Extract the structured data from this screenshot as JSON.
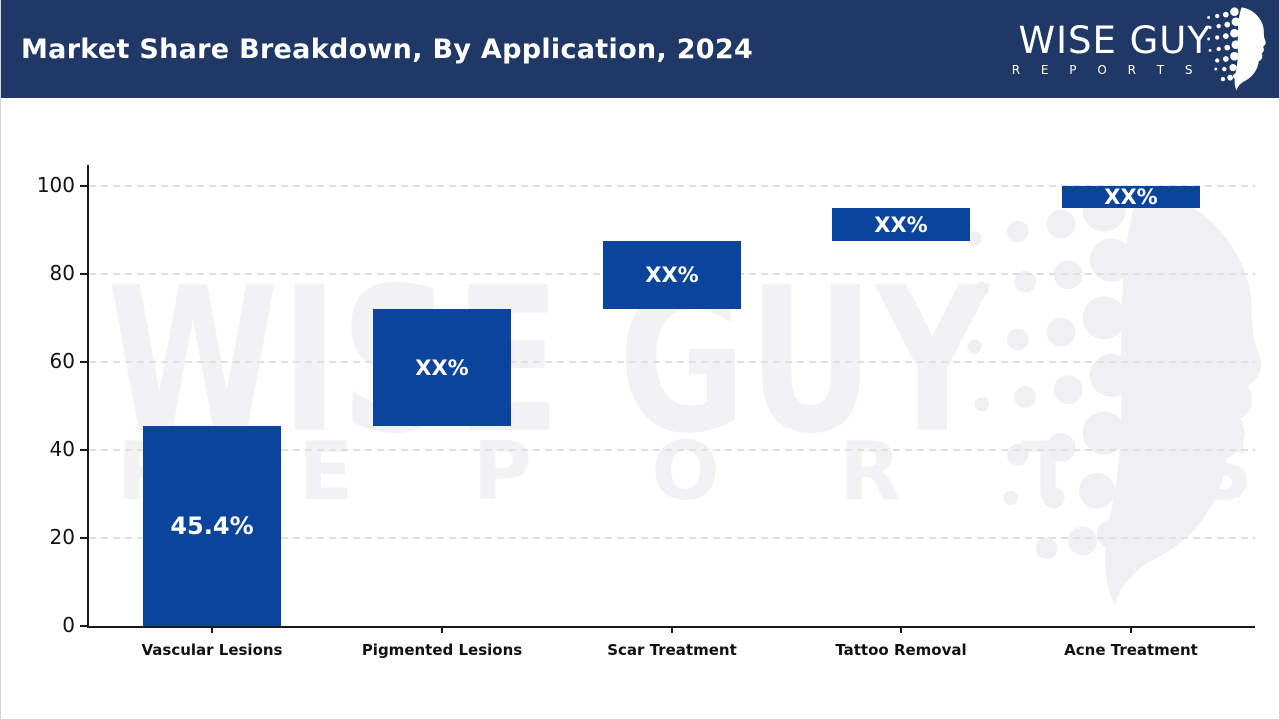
{
  "header": {
    "title": "Market Share Breakdown, By Application, 2024",
    "logo": {
      "name": "WISE GUY",
      "sub": "R E P O R T S"
    }
  },
  "watermark": {
    "big": "WISE GUY",
    "sub": "R E P O R T S"
  },
  "chart_data": {
    "type": "bar",
    "subtype": "floating-segment-waterfall",
    "title": "Market Share Breakdown, By Application, 2024",
    "xlabel": "",
    "ylabel": "",
    "categories": [
      "Vascular Lesions",
      "Pigmented Lesions",
      "Scar Treatment",
      "Tattoo Removal",
      "Acne Treatment"
    ],
    "segments": [
      {
        "category": "Vascular Lesions",
        "start": 0,
        "end": 45.4,
        "label": "45.4%"
      },
      {
        "category": "Pigmented Lesions",
        "start": 45.4,
        "end": 72,
        "label": "XX%"
      },
      {
        "category": "Scar Treatment",
        "start": 72,
        "end": 87.5,
        "label": "XX%"
      },
      {
        "category": "Tattoo Removal",
        "start": 87.5,
        "end": 95,
        "label": "XX%"
      },
      {
        "category": "Acne Treatment",
        "start": 95,
        "end": 100,
        "label": "XX%"
      }
    ],
    "yticks": [
      0,
      20,
      40,
      60,
      80,
      100
    ],
    "ylim": [
      0,
      105
    ],
    "grid": {
      "horizontal": true,
      "style": "dashed"
    },
    "legend": null,
    "bar_color": "#0a449c"
  },
  "colors": {
    "header_bg": "#203865",
    "bar": "#0a449c",
    "axis": "#1a1a1a",
    "grid": "#e1e1e1",
    "watermark": "#f2f2f4",
    "border": "#d5d5d5",
    "label_on_bar": "#ffffff"
  }
}
